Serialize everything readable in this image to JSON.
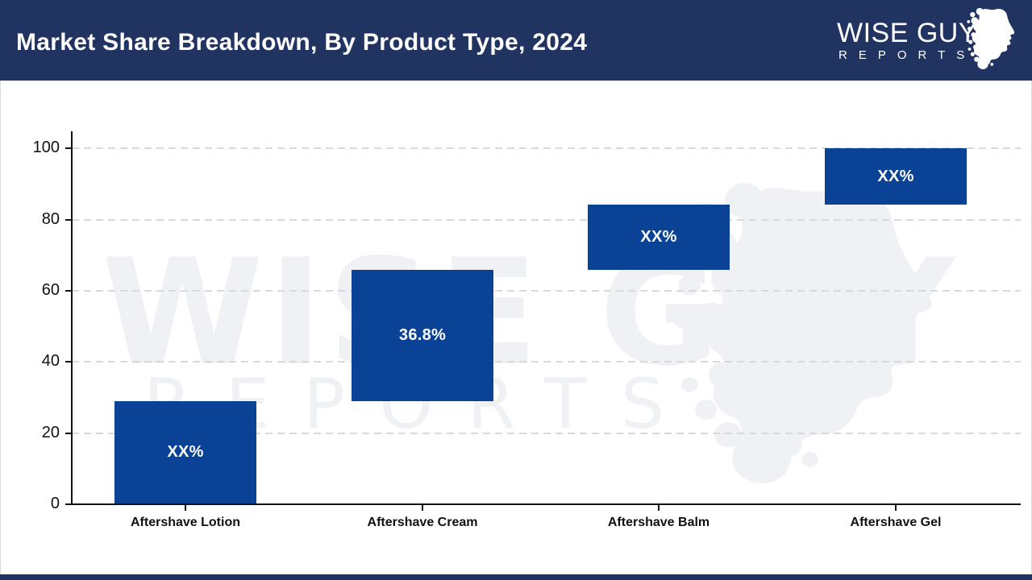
{
  "header": {
    "title": "Market Share Breakdown, By Product Type, 2024",
    "logo": {
      "brand_line1": "WISE GUY",
      "brand_line2": "REPORTS",
      "icon": "dotted-head-profile"
    }
  },
  "watermark": {
    "line1": "WISE GUY",
    "line2": "REPORTS",
    "icon": "dotted-head-profile"
  },
  "colors": {
    "header_bg": "#213361",
    "footer_bg": "#213361",
    "bar": "#0a4296",
    "bar_label": "#ffffff",
    "axis": "#111111",
    "grid": "#d9d9d9",
    "watermark": "#f0f1f4",
    "title_text": "#ffffff",
    "page_bg": "#ffffff"
  },
  "chart_data": {
    "type": "bar",
    "subtype": "waterfall",
    "title": "Market Share Breakdown, By Product Type, 2024",
    "categories": [
      "Aftershave Lotion",
      "Aftershave Cream",
      "Aftershave Balm",
      "Aftershave Gel"
    ],
    "segments": [
      {
        "start": 0,
        "end": 29
      },
      {
        "start": 29,
        "end": 65.8
      },
      {
        "start": 65.8,
        "end": 84.2
      },
      {
        "start": 84.2,
        "end": 100
      }
    ],
    "bar_labels": [
      "XX%",
      "36.8%",
      "XX%",
      "XX%"
    ],
    "disclosed_value_pct": 36.8,
    "xlabel": "",
    "ylabel": "",
    "ylim": [
      0,
      105
    ],
    "yticks": [
      0,
      20,
      40,
      60,
      80,
      100
    ],
    "grid": "horizontal-dashed",
    "legend": "none"
  }
}
